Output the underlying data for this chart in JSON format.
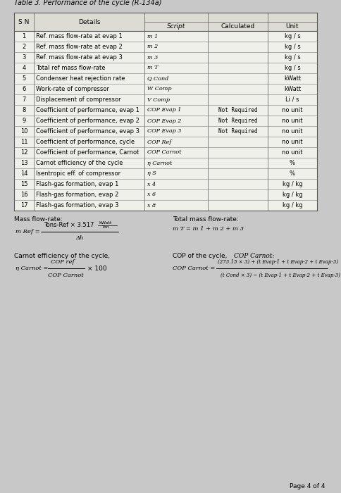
{
  "title": "Table 3. Performance of the cycle (R-134a)",
  "bg_color": "#c8c8c8",
  "table_bg": "#f0f0eb",
  "header_bg": "#dcdcd4",
  "rows": [
    [
      "1",
      "Ref. mass flow-rate at evap 1",
      "m 1",
      "",
      "kg / s"
    ],
    [
      "2",
      "Ref. mass flow-rate at evap 2",
      "m 2",
      "",
      "kg / s"
    ],
    [
      "3",
      "Ref. mass flow-rate at evap 3",
      "m 3",
      "",
      "kg / s"
    ],
    [
      "4",
      "Total ref mass flow-rate",
      "m T",
      "",
      "kg / s"
    ],
    [
      "5",
      "Condenser heat rejection rate",
      "Q Cond",
      "",
      "kWatt"
    ],
    [
      "6",
      "Work-rate of compressor",
      "W Comp",
      "",
      "kWatt"
    ],
    [
      "7",
      "Displacement of compressor",
      "V Comp",
      "",
      "Li / s"
    ],
    [
      "8",
      "Coefficient of performance, evap 1",
      "COP Evap 1",
      "Not Required",
      "no unit"
    ],
    [
      "9",
      "Coefficient of performance, evap 2",
      "COP Evap 2",
      "Not Required",
      "no unit"
    ],
    [
      "10",
      "Coefficient of performance, evap 3",
      "COP Evap 3",
      "Not Required",
      "no unit"
    ],
    [
      "11",
      "Coefficient of performance, cycle",
      "COP Ref",
      "",
      "no unit"
    ],
    [
      "12",
      "Coefficient of performance, Carnot",
      "COP Carnot",
      "",
      "no unit"
    ],
    [
      "13",
      "Carnot efficiency of the cycle",
      "η Carnot",
      "",
      "%"
    ],
    [
      "14",
      "Isentropic eff. of compressor",
      "η S",
      "",
      "%"
    ],
    [
      "15",
      "Flash-gas formation, evap 1",
      "x 4",
      "",
      "kg / kg"
    ],
    [
      "16",
      "Flash-gas formation, evap 2",
      "x 6",
      "",
      "kg / kg"
    ],
    [
      "17",
      "Flash-gas formation, evap 3",
      "x 8",
      "",
      "kg / kg"
    ]
  ],
  "col_headers": [
    "S N",
    "Details",
    "Script",
    "Calculated",
    "Unit"
  ],
  "page_label": "Page 4 of 4"
}
